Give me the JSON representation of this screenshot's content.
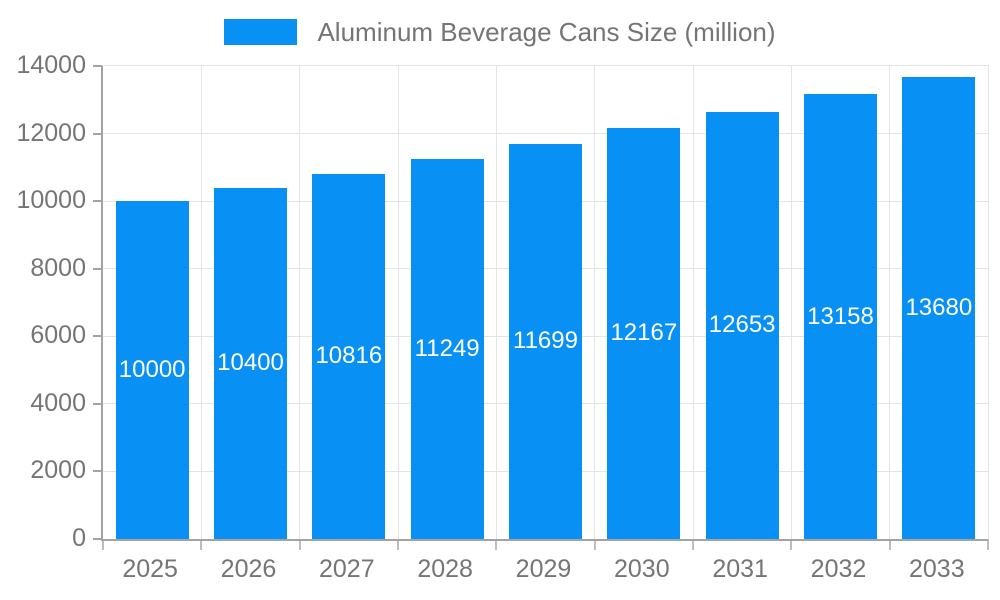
{
  "legend": {
    "label": "Aluminum Beverage Cans Size (million)"
  },
  "colors": {
    "bar": "#0890f5",
    "bar_label": "#ffffff",
    "axis_line": "#a3a3a3",
    "grid_line": "#e4e4e4",
    "tick_text": "#757575",
    "legend_text": "#757575",
    "background": "#ffffff"
  },
  "chart_data": {
    "type": "bar",
    "title": "Aluminum Beverage Cans Size (million)",
    "categories": [
      "2025",
      "2026",
      "2027",
      "2028",
      "2029",
      "2030",
      "2031",
      "2032",
      "2033"
    ],
    "values": [
      10000,
      10400,
      10816,
      11249,
      11699,
      12167,
      12653,
      13158,
      13680
    ],
    "series": [
      {
        "name": "Aluminum Beverage Cans Size (million)",
        "values": [
          10000,
          10400,
          10816,
          11249,
          11699,
          12167,
          12653,
          13158,
          13680
        ],
        "color": "#0890f5"
      }
    ],
    "xlabel": "",
    "ylabel": "",
    "ylim": [
      0,
      14000
    ],
    "yticks": [
      0,
      2000,
      4000,
      6000,
      8000,
      10000,
      12000,
      14000
    ],
    "grid": true,
    "legend_position": "top-center",
    "value_labels": "inside-center-white"
  }
}
